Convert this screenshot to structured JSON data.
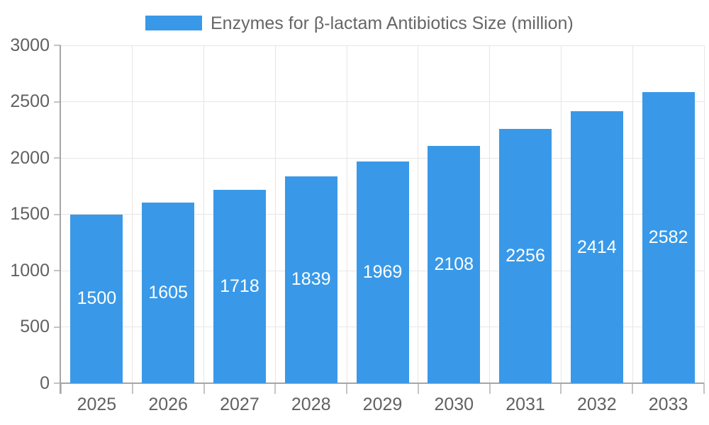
{
  "legend": {
    "label": "Enzymes for β-lactam Antibiotics Size (million)"
  },
  "chart_data": {
    "type": "bar",
    "title": "Enzymes for β-lactam Antibiotics Size (million)",
    "categories": [
      "2025",
      "2026",
      "2027",
      "2028",
      "2029",
      "2030",
      "2031",
      "2032",
      "2033"
    ],
    "values": [
      1500,
      1605,
      1718,
      1839,
      1969,
      2108,
      2256,
      2414,
      2582
    ],
    "xlabel": "",
    "ylabel": "",
    "ylim": [
      0,
      3000
    ],
    "yticks": [
      0,
      500,
      1000,
      1500,
      2000,
      2500,
      3000
    ],
    "grid": true,
    "legend_position": "top",
    "value_labels": "centered-inside-bars"
  },
  "colors": {
    "bar": "#3999E8",
    "value_label": "#FFFFFF",
    "grid": "#E6E6E6",
    "tick": "#C4C4C4",
    "axis": "#A6A6A6",
    "tick_text": "#616161",
    "legend_text": "#666666",
    "background": "#FFFFFF"
  }
}
